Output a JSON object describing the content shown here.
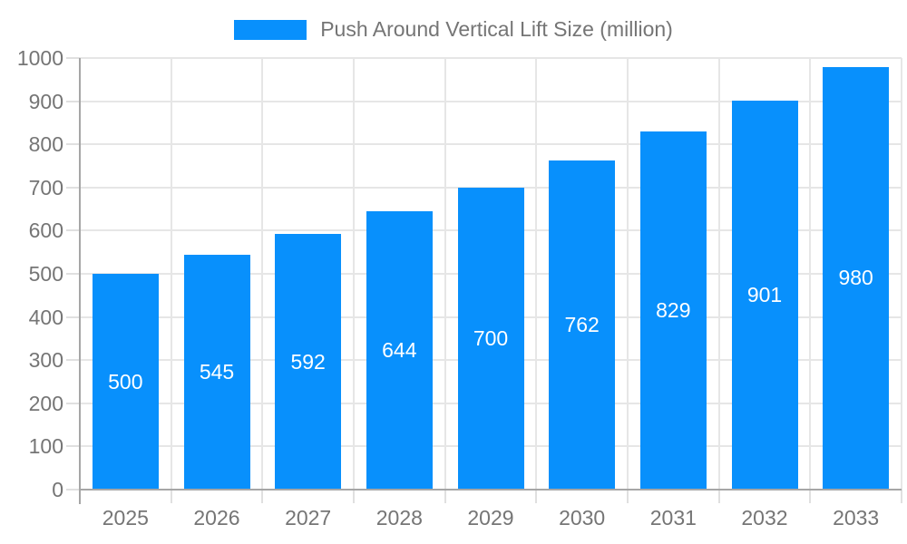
{
  "legend": {
    "label": "Push Around Vertical Lift Size (million)"
  },
  "colors": {
    "bar": "#0890FC",
    "grid_line": "#e6e6e6",
    "tick_line": "#e0e0e0",
    "axis_line": "#a6a6a6",
    "text": "#757575",
    "value_label": "#ffffff"
  },
  "chart_data": {
    "type": "bar",
    "title": "",
    "xlabel": "",
    "ylabel": "",
    "series_name": "Push Around Vertical Lift Size (million)",
    "categories": [
      "2025",
      "2026",
      "2027",
      "2028",
      "2029",
      "2030",
      "2031",
      "2032",
      "2033"
    ],
    "values": [
      500,
      545,
      592,
      644,
      700,
      762,
      829,
      901,
      980
    ],
    "ylim": [
      0,
      1000
    ],
    "yticks": [
      0,
      100,
      200,
      300,
      400,
      500,
      600,
      700,
      800,
      900,
      1000
    ],
    "grid": "on",
    "legend_position": "top",
    "value_labels": "inside-center"
  }
}
